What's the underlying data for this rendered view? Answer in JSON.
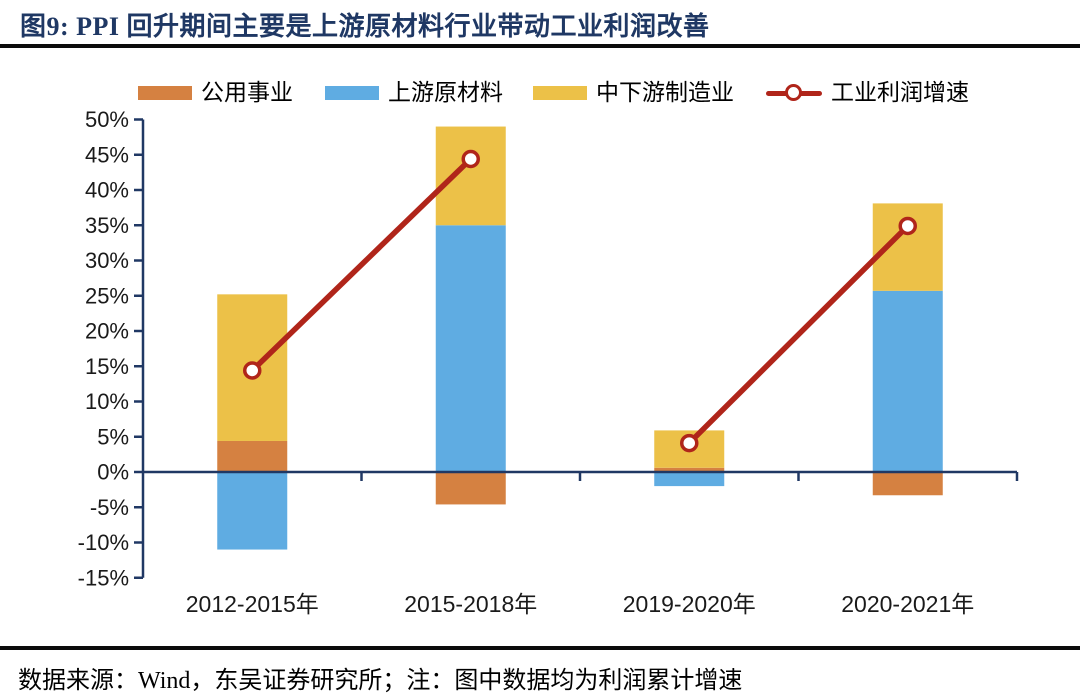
{
  "page": {
    "title": "图9:  PPI 回升期间主要是上游原材料行业带动工业利润改善",
    "footer": "数据来源：Wind，东吴证券研究所；注：图中数据均为利润累计增速"
  },
  "chart_data": {
    "type": "bar",
    "subtype": "stacked-bars-with-line-overlay",
    "title": "PPI 回升期间主要是上游原材料行业带动工业利润改善",
    "categories": [
      "2012-2015年",
      "2015-2018年",
      "2019-2020年",
      "2020-2021年"
    ],
    "series": [
      {
        "name": "公用事业",
        "type": "bar",
        "color": "#D58141",
        "values": [
          4.4,
          -4.6,
          0.6,
          -3.3
        ]
      },
      {
        "name": "上游原材料",
        "type": "bar",
        "color": "#5FACE2",
        "values": [
          -11.0,
          35.0,
          -2.0,
          25.7
        ]
      },
      {
        "name": "中下游制造业",
        "type": "bar",
        "color": "#ECC148",
        "values": [
          20.8,
          14.0,
          5.3,
          12.4
        ]
      },
      {
        "name": "工业利润增速",
        "type": "line",
        "color": "#B0251A",
        "values": [
          14.4,
          44.4,
          4.1,
          34.9
        ]
      }
    ],
    "line_segments": [
      [
        0,
        1
      ],
      [
        2,
        3
      ]
    ],
    "ylim": [
      -15,
      50
    ],
    "ytick_step": 5,
    "ytick_suffix": "%",
    "legend_position": "top",
    "grid": false,
    "axis_color": "#203864",
    "tick_label_color": "#1a1a1a"
  }
}
